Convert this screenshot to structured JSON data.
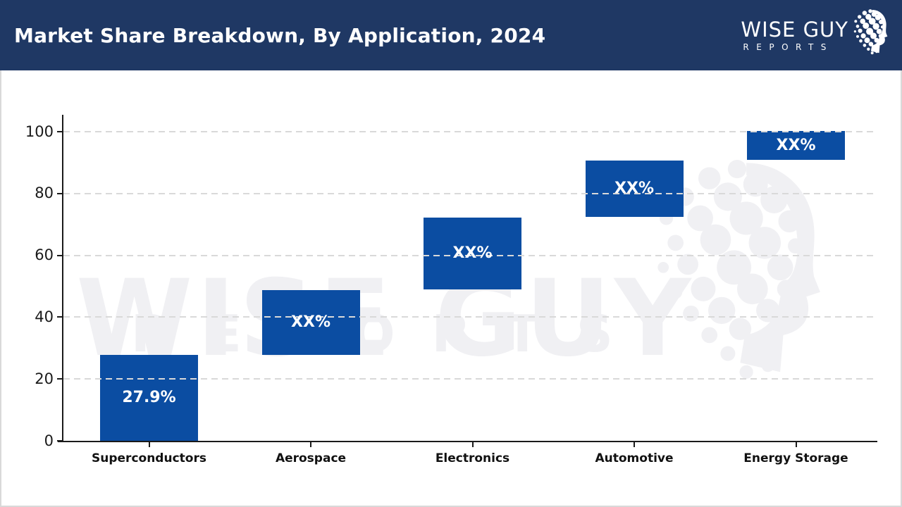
{
  "header": {
    "title": "Market Share Breakdown, By Application, 2024",
    "logo": {
      "line1": "WISE GUY",
      "line2": "REPORTS"
    }
  },
  "watermark": {
    "line1": "WISE GUY",
    "line2": "REPORTS"
  },
  "chart_data": {
    "type": "bar",
    "subtype": "floating-waterfall-bars",
    "title": "Market Share Breakdown, By Application, 2024",
    "xlabel": "",
    "ylabel": "",
    "categories": [
      "Superconductors",
      "Aerospace",
      "Electronics",
      "Automotive",
      "Energy Storage"
    ],
    "segments": [
      {
        "category": "Superconductors",
        "start": 0,
        "end": 27.9,
        "label": "27.9%"
      },
      {
        "category": "Aerospace",
        "start": 27.8,
        "end": 48.7,
        "label": "XX%"
      },
      {
        "category": "Electronics",
        "start": 48.9,
        "end": 72.3,
        "label": "XX%"
      },
      {
        "category": "Automotive",
        "start": 72.5,
        "end": 90.7,
        "label": "XX%"
      },
      {
        "category": "Energy Storage",
        "start": 90.9,
        "end": 100.2,
        "label": "XX%"
      }
    ],
    "yticks": [
      0,
      20,
      40,
      60,
      80,
      100
    ],
    "ylim": [
      0,
      105.5
    ],
    "grid": true,
    "legend": false
  },
  "colors": {
    "header_bg": "#1f3864",
    "bar": "#0b4da2",
    "bar_label": "#ffffff",
    "axis": "#1a1a1a",
    "gridline": "#d9d9d9",
    "watermark": "#f0f0f3",
    "canvas_border": "#d9d9d9"
  }
}
